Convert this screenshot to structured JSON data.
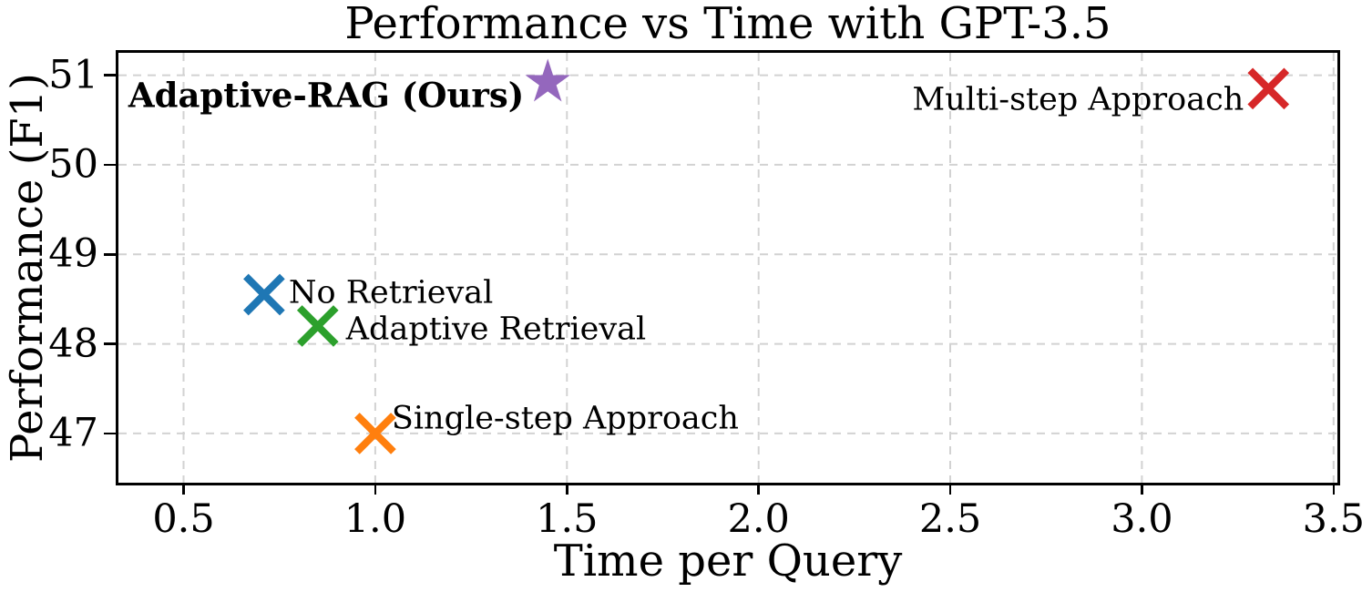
{
  "chart_data": {
    "type": "scatter",
    "title": "Performance vs Time with GPT-3.5",
    "xlabel": "Time per Query",
    "ylabel": "Performance (F1)",
    "xlim": [
      0.33,
      3.51
    ],
    "ylim": [
      46.45,
      51.25
    ],
    "grid": true,
    "grid_color": "#d2d2d2",
    "spine_color": "#000000",
    "xticks": {
      "values": [
        0.5,
        1.0,
        1.5,
        2.0,
        2.5,
        3.0,
        3.5
      ],
      "labels": [
        "0.5",
        "1.0",
        "1.5",
        "2.0",
        "2.5",
        "3.0",
        "3.5"
      ]
    },
    "yticks": {
      "values": [
        47,
        48,
        49,
        50,
        51
      ],
      "labels": [
        "47",
        "48",
        "49",
        "50",
        "51"
      ]
    },
    "series": [
      {
        "id": "no-retrieval",
        "name": "No Retrieval",
        "x": 0.71,
        "y": 48.55,
        "marker": "x",
        "color": "#1f77b4",
        "label": {
          "text": "No Retrieval",
          "align": "left",
          "dx": 27,
          "dy": -2,
          "bold": false
        }
      },
      {
        "id": "adaptive-retrieval",
        "name": "Adaptive Retrieval",
        "x": 0.85,
        "y": 48.2,
        "marker": "x",
        "color": "#2ca02c",
        "label": {
          "text": "Adaptive Retrieval",
          "align": "left",
          "dx": 31,
          "dy": 4,
          "bold": false
        }
      },
      {
        "id": "single-step-approach",
        "name": "Single-step Approach",
        "x": 1.0,
        "y": 47.0,
        "marker": "x",
        "color": "#ff7f0e",
        "label": {
          "text": "Single-step Approach",
          "align": "left",
          "dx": 18,
          "dy": -16,
          "bold": false
        }
      },
      {
        "id": "adaptive-rag-ours",
        "name": "Adaptive-RAG (Ours)",
        "x": 1.45,
        "y": 50.92,
        "marker": "star",
        "color": "#9467bd",
        "label": {
          "text": "Adaptive-RAG (Ours)",
          "align": "right",
          "dx": -26,
          "dy": 15,
          "bold": true
        }
      },
      {
        "id": "multi-step-approach",
        "name": "Multi-step Approach",
        "x": 3.33,
        "y": 50.85,
        "marker": "x",
        "color": "#d62728",
        "label": {
          "text": "Multi-step Approach",
          "align": "right",
          "dx": -27,
          "dy": 13,
          "bold": false
        }
      }
    ]
  }
}
